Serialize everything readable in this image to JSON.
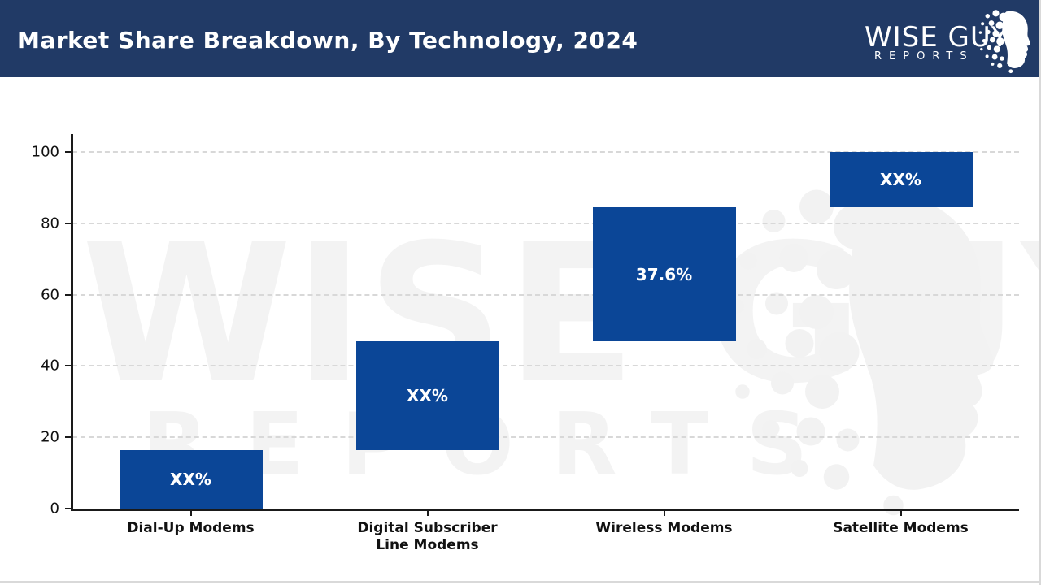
{
  "header": {
    "title": "Market Share Breakdown, By Technology, 2024",
    "logo": {
      "line1": "WISE GUY",
      "line2": "REPORTS"
    }
  },
  "watermark": {
    "line1": "WISE GUY",
    "line2": "REPORTS"
  },
  "chart_data": {
    "type": "bar",
    "subtype": "floating-waterfall",
    "title": "Market Share Breakdown, By Technology, 2024",
    "categories": [
      [
        "Dial-Up Modems"
      ],
      [
        "Digital Subscriber",
        "Line Modems"
      ],
      [
        "Wireless Modems"
      ],
      [
        "Satellite Modems"
      ]
    ],
    "segments": [
      {
        "category": "Dial-Up Modems",
        "start": 0,
        "end": 16.4,
        "label": "XX%"
      },
      {
        "category": "Digital Subscriber Line Modems",
        "start": 16.4,
        "end": 46.9,
        "label": "XX%"
      },
      {
        "category": "Wireless Modems",
        "start": 46.9,
        "end": 84.5,
        "label": "37.6%"
      },
      {
        "category": "Satellite Modems",
        "start": 84.5,
        "end": 100,
        "label": "XX%"
      }
    ],
    "xlabel": "",
    "ylabel": "",
    "ylim": [
      0,
      100
    ],
    "yticks": [
      0,
      20,
      40,
      60,
      80,
      100
    ],
    "grid": "horizontal-dashed",
    "legend": "none"
  },
  "colors": {
    "header_bg": "#213A66",
    "bar": "#0B4697",
    "bar_label": "#FFFFFF",
    "grid": "#D8D8D8",
    "axis": "#1A1A1A",
    "watermark": "#F2F2F2"
  }
}
